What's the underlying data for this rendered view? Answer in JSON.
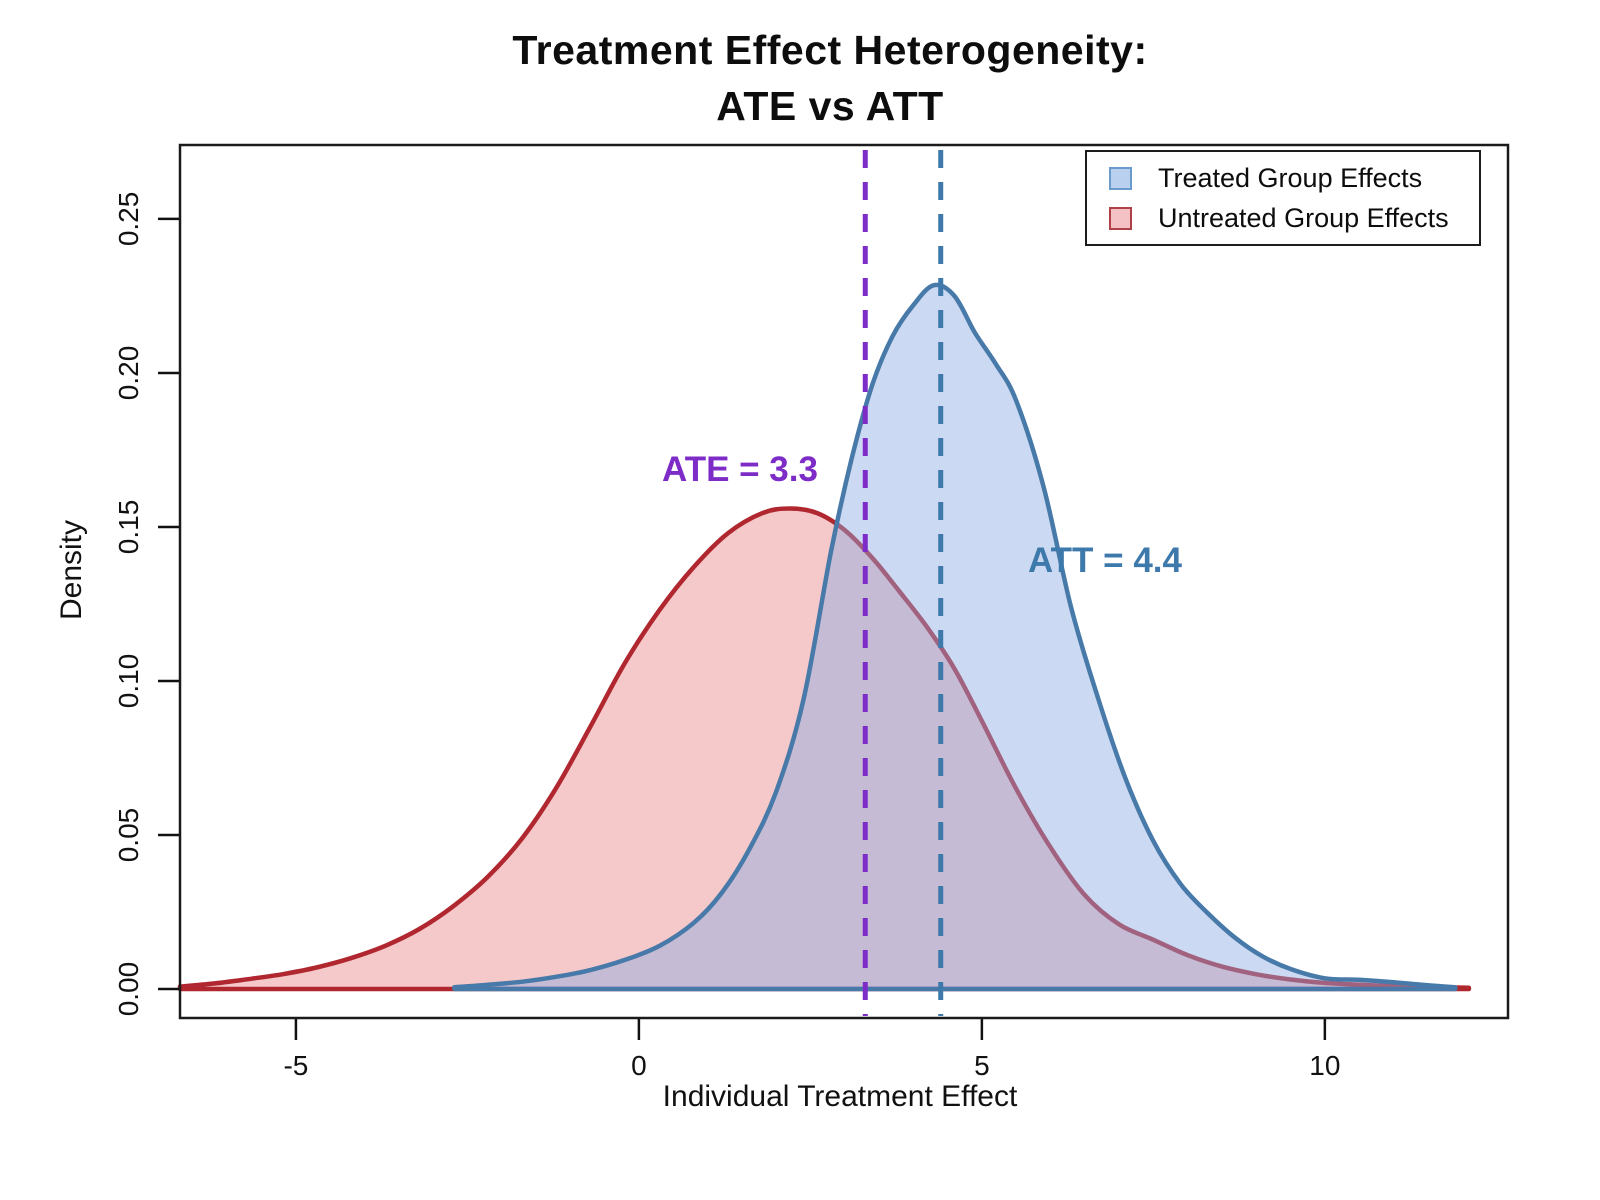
{
  "chart_data": {
    "type": "area",
    "subtype": "kernel-density-overlay",
    "title_lines": [
      "Treatment Effect Heterogeneity:",
      "ATE vs ATT"
    ],
    "xlabel": "Individual Treatment Effect",
    "ylabel": "Density",
    "x_ticks": [
      -5,
      0,
      5,
      10
    ],
    "y_ticks": [
      "0.00",
      "0.05",
      "0.10",
      "0.15",
      "0.20",
      "0.25"
    ],
    "xlim": [
      -6.69,
      12.67
    ],
    "ylim": [
      -0.0094,
      0.274
    ],
    "grid": false,
    "legend_position": "top-right",
    "series": [
      {
        "name": "Untreated Group Effects",
        "line_color": "#b0272f",
        "fill_color": "rgba(231,126,129,0.42)",
        "peak": {
          "x": 2.2,
          "density": 0.156
        },
        "x": [
          -6.69,
          -6.2,
          -5.7,
          -5.2,
          -4.7,
          -4.2,
          -3.7,
          -3.2,
          -2.7,
          -2.2,
          -1.7,
          -1.2,
          -0.7,
          -0.2,
          0.3,
          0.8,
          1.3,
          1.8,
          2.2,
          2.6,
          3.0,
          3.4,
          3.8,
          4.2,
          4.6,
          5.0,
          5.5,
          6.0,
          6.5,
          7.0,
          7.5,
          8.0,
          8.5,
          9.0,
          9.5,
          10.0,
          10.6,
          11.2,
          12.1
        ],
        "density": [
          0.0008,
          0.0018,
          0.0032,
          0.0048,
          0.007,
          0.01,
          0.014,
          0.0195,
          0.027,
          0.0365,
          0.049,
          0.0655,
          0.0855,
          0.106,
          0.123,
          0.137,
          0.148,
          0.1545,
          0.156,
          0.1545,
          0.149,
          0.14,
          0.129,
          0.1175,
          0.104,
          0.087,
          0.065,
          0.046,
          0.0305,
          0.021,
          0.016,
          0.011,
          0.0073,
          0.0048,
          0.0031,
          0.002,
          0.0013,
          0.0008,
          0.0004
        ]
      },
      {
        "name": "Treated Group Effects",
        "line_color": "#4779a9",
        "fill_color": "rgba(142,171,226,0.45)",
        "peak": {
          "x": 4.3,
          "density": 0.2285
        },
        "x": [
          -2.69,
          -2.2,
          -1.7,
          -1.2,
          -0.7,
          -0.2,
          0.3,
          0.8,
          1.2,
          1.6,
          2.0,
          2.4,
          2.8,
          3.1,
          3.4,
          3.7,
          4.0,
          4.3,
          4.6,
          4.9,
          5.2,
          5.5,
          5.9,
          6.3,
          6.7,
          7.1,
          7.5,
          7.9,
          8.3,
          8.7,
          9.1,
          9.5,
          10.0,
          10.5,
          11.0,
          11.5,
          11.9
        ],
        "density": [
          0.0006,
          0.0014,
          0.0024,
          0.004,
          0.0062,
          0.0095,
          0.014,
          0.0215,
          0.031,
          0.045,
          0.064,
          0.094,
          0.142,
          0.172,
          0.196,
          0.212,
          0.222,
          0.2285,
          0.225,
          0.213,
          0.203,
          0.191,
          0.163,
          0.124,
          0.094,
          0.068,
          0.048,
          0.034,
          0.0245,
          0.0165,
          0.0105,
          0.0065,
          0.0035,
          0.003,
          0.0022,
          0.0012,
          0.0006
        ]
      }
    ],
    "vlines": [
      {
        "name": "ATE",
        "value": 3.3,
        "label": "ATE = 3.3",
        "color": "#7e2cc8"
      },
      {
        "name": "ATT",
        "value": 4.4,
        "label": "ATT = 4.4",
        "color": "#3e79ab"
      }
    ],
    "legend_items": [
      {
        "label": "Treated Group Effects",
        "fill": "#b9d1ee",
        "border": "#6a9bcd"
      },
      {
        "label": "Untreated Group Effects",
        "fill": "#f4c2c5",
        "border": "#b04048"
      }
    ]
  }
}
